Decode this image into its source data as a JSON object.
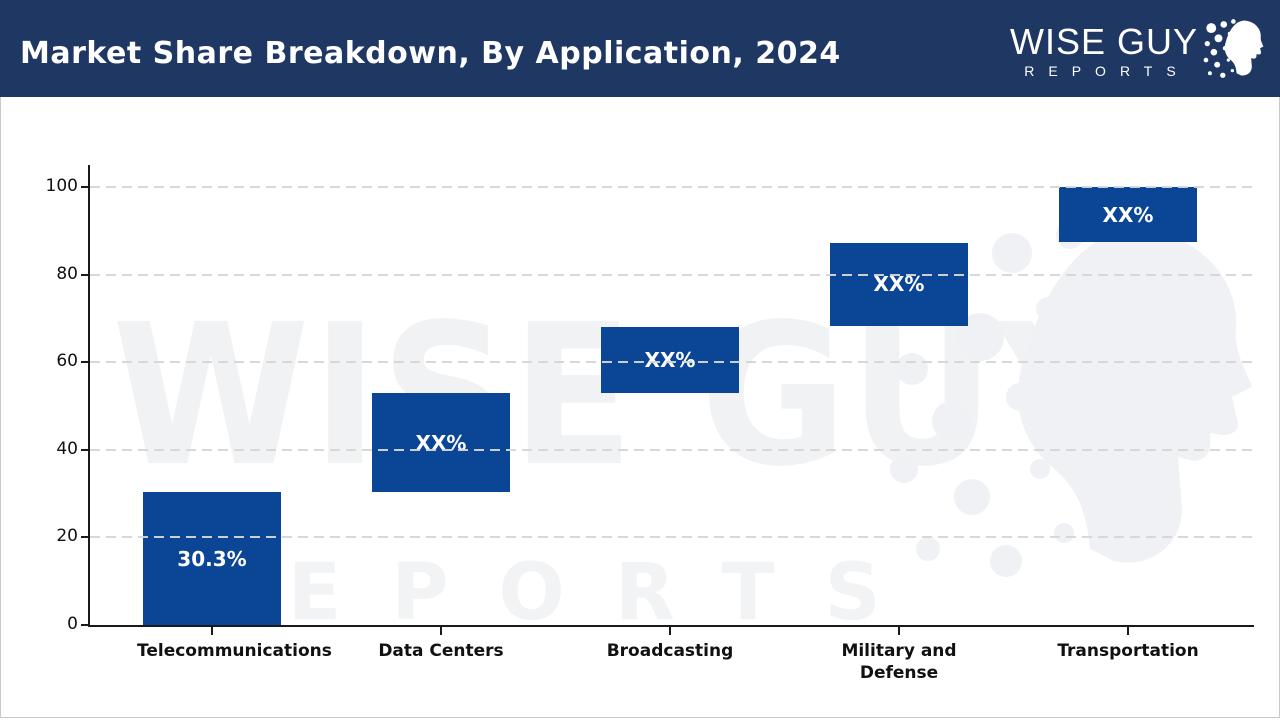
{
  "header": {
    "title": "Market Share Breakdown, By Application, 2024",
    "bg_color": "#1f3763",
    "logo": {
      "line1": "WISE GUY",
      "line2": "REPORTS"
    }
  },
  "watermark": {
    "line1": "WISE GUY",
    "line2": "REPORTS"
  },
  "chart_data": {
    "type": "bar",
    "subtype": "waterfall-floating-bars",
    "title": "Market Share Breakdown, By Application, 2024",
    "categories": [
      "Telecommunications",
      "Data Centers",
      "Broadcasting",
      "Military and Defense",
      "Transportation"
    ],
    "segments": [
      {
        "category": "Telecommunications",
        "start": 0,
        "end": 30.3,
        "label": "30.3%"
      },
      {
        "category": "Data Centers",
        "start": 30.3,
        "end": 53,
        "label": "XX%"
      },
      {
        "category": "Broadcasting",
        "start": 53,
        "end": 68,
        "label": "XX%"
      },
      {
        "category": "Military and Defense",
        "start": 68.3,
        "end": 87.2,
        "label": "XX%"
      },
      {
        "category": "Transportation",
        "start": 87.4,
        "end": 100,
        "label": "XX%"
      }
    ],
    "xlabel": "",
    "ylabel": "",
    "ylim": [
      0,
      100
    ],
    "yticks": [
      0,
      20,
      40,
      60,
      80,
      100
    ],
    "grid": "horizontal-dashed-over-bars",
    "legend": "none",
    "bar_color": "#0b4596",
    "bar_label_color": "#ffffff",
    "grid_color": "#d6d6d6",
    "axis_color": "#1a1a1a"
  }
}
